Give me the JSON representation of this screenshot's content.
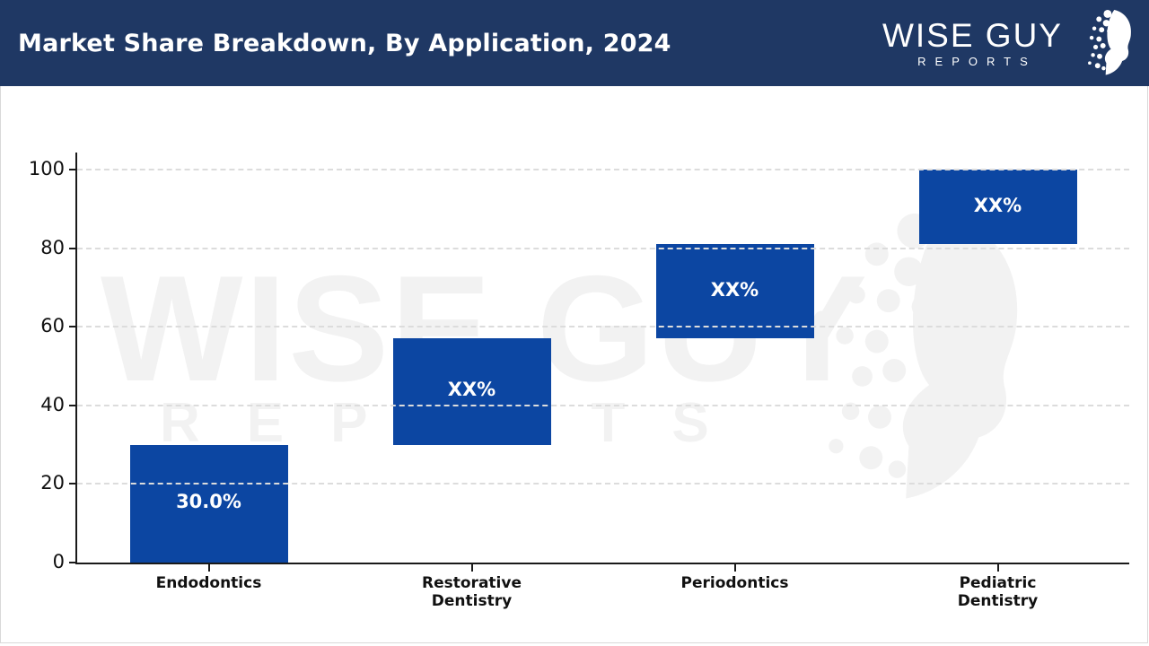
{
  "header": {
    "title": "Market Share Breakdown, By Application, 2024",
    "bg_color": "#1f3864",
    "logo": {
      "line1": "WISE GUY",
      "line2": "REPORTS"
    }
  },
  "watermark": {
    "line1": "WISE GUY",
    "line2": "REPORTS"
  },
  "chart_data": {
    "type": "bar",
    "subtype": "waterfall",
    "title": "Market Share Breakdown, By Application, 2024",
    "categories": [
      "Endodontics",
      "Restorative Dentistry",
      "Periodontics",
      "Pediatric Dentistry"
    ],
    "segments": [
      {
        "category": "Endodontics",
        "start": 0,
        "end": 30,
        "value": 30.0,
        "label": "30.0%"
      },
      {
        "category": "Restorative Dentistry",
        "start": 30,
        "end": 57,
        "value": 27,
        "label": "XX%"
      },
      {
        "category": "Periodontics",
        "start": 57,
        "end": 81,
        "value": 24,
        "label": "XX%"
      },
      {
        "category": "Pediatric Dentistry",
        "start": 81,
        "end": 100,
        "value": 19,
        "label": "XX%"
      }
    ],
    "yticks": [
      0,
      20,
      40,
      60,
      80,
      100
    ],
    "ylim": [
      0,
      104
    ],
    "xlabel": "",
    "ylabel": "",
    "grid": "horizontal-dashed",
    "legend": "none",
    "bar_color": "#0c46a2",
    "bar_label_color": "#ffffff",
    "axis_color": "#1a1a1a",
    "grid_color": "#dcdcdc"
  }
}
